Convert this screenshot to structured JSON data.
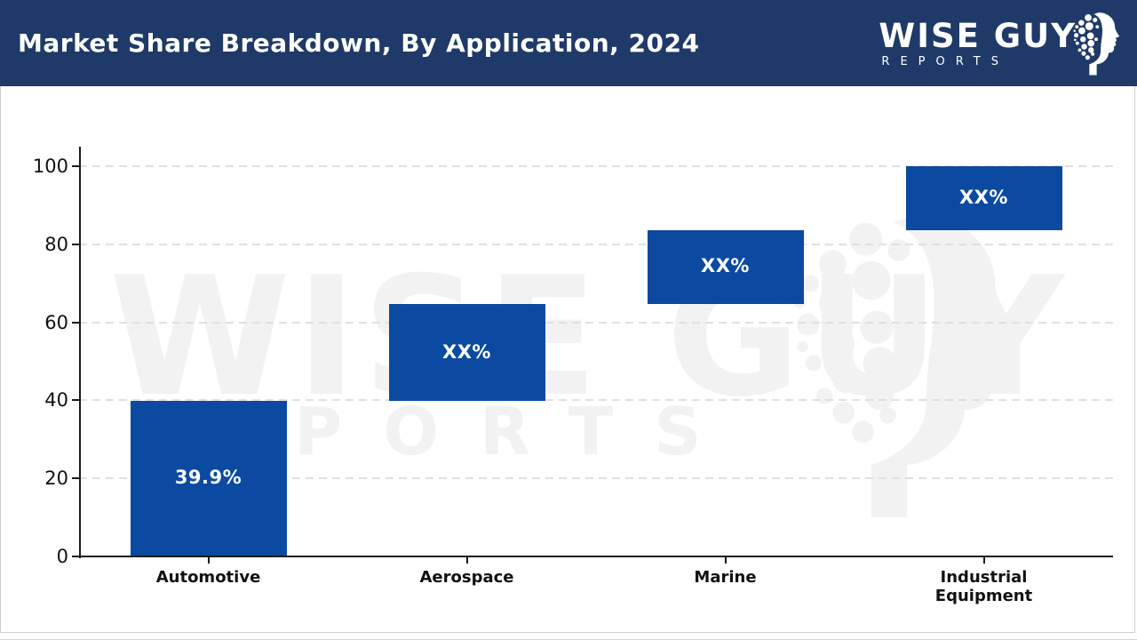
{
  "header": {
    "title": "Market Share Breakdown, By Application, 2024",
    "logo": {
      "line1": "WISE GUY",
      "line2": "REPORTS"
    }
  },
  "watermark": {
    "line1": "WISE GUY",
    "line2": "PORTS"
  },
  "chart_data": {
    "type": "bar",
    "subtype": "waterfall",
    "title": "Market Share Breakdown, By Application, 2024",
    "categories": [
      "Automotive",
      "Aerospace",
      "Marine",
      "Industrial Equipment"
    ],
    "segments": [
      {
        "category": "Automotive",
        "start": 0,
        "end": 39.9,
        "size": 39.9,
        "label": "39.9%"
      },
      {
        "category": "Aerospace",
        "start": 39.9,
        "end": 64.6,
        "size": 24.7,
        "label": "XX%"
      },
      {
        "category": "Marine",
        "start": 64.6,
        "end": 83.7,
        "size": 19.1,
        "label": "XX%"
      },
      {
        "category": "Industrial Equipment",
        "start": 83.7,
        "end": 100,
        "size": 16.3,
        "label": "XX%"
      }
    ],
    "yticks": [
      0,
      20,
      40,
      60,
      80,
      100
    ],
    "ylim": [
      0,
      105
    ],
    "xlabel": "",
    "ylabel": "",
    "grid": "horizontal-dashed",
    "legend": null,
    "bar_color": "#0B4AA0",
    "bar_label_color": "#ffffff"
  },
  "colors": {
    "header_bg": "#1F3A68",
    "bar": "#0B4AA0",
    "axis": "#1a1a1a",
    "gridline": "#e0e0e0",
    "watermark": "#f2f2f3",
    "border": "#cfcfcf"
  }
}
